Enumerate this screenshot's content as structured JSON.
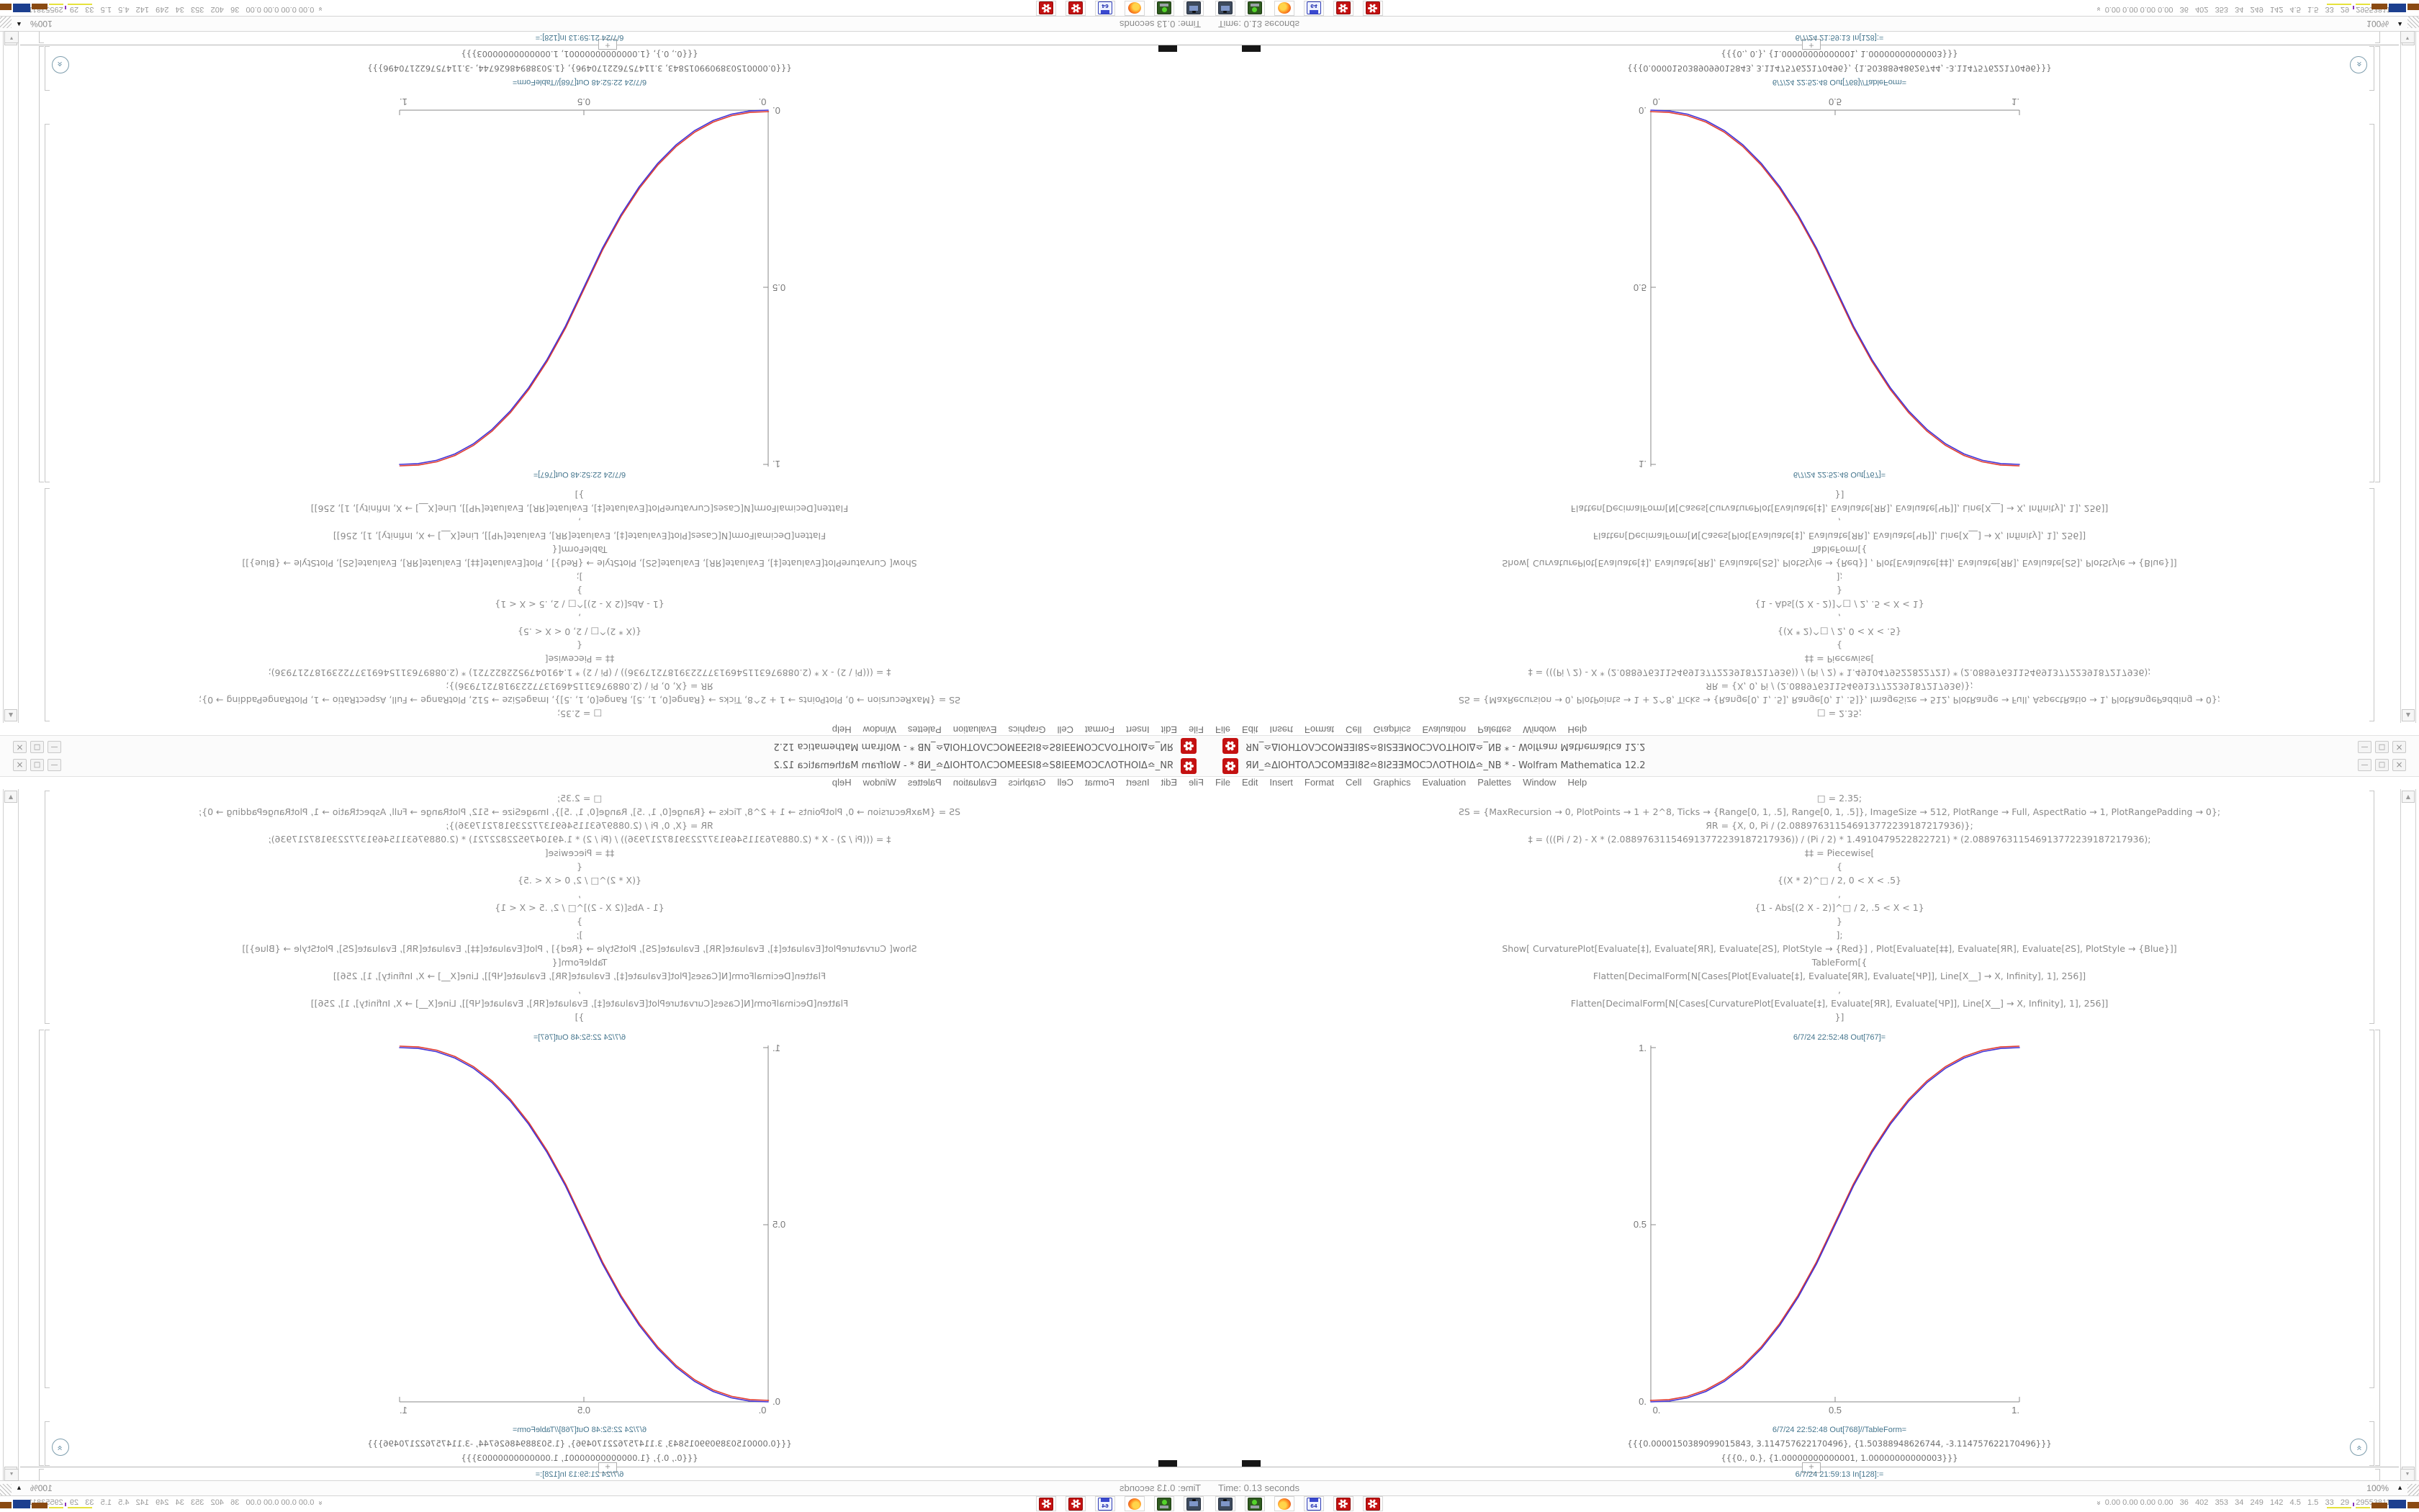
{
  "app": "Wolfram Mathematica 12.2",
  "window": {
    "title": "ЯИ_≏ΔΙΟΗΤΟΛƆCΟΜƎƎΙ8Ƨ≏8ΙƧƎƎΜΟCƆΛΟΤΗΟΙΔ≏_NB * - Wolfram Mathematica 12.2",
    "buttons": {
      "minimize": "—",
      "maximize": "□",
      "close": "×"
    },
    "menu": [
      "File",
      "Edit",
      "Insert",
      "Format",
      "Cell",
      "Graphics",
      "Evaluation",
      "Palettes",
      "Window",
      "Help"
    ],
    "code_lines": [
      "□ = 2.35;",
      "ƧS = {MaxRecursion → 0, PlotPoints → 1 + 2^8, Ticks → {Range[0, 1, .5], Range[0, 1, .5]}, ImageSize → 512, PlotRange → Full, AspectRatio → 1, PlotRangePadding → 0};",
      "ЯR = {X, 0, Pi / (2.088976311546913772239187217936)};",
      "‡ = (((Pi / 2) - X * (2.088976311546913772239187217936)) / (Pi / 2) * 1.4910479522822721) * (2.088976311546913772239187217936);",
      "‡‡ = Piecewise[",
      "{",
      "{(X * 2)^□ / 2, 0 < X < .5}",
      ",",
      "{1 - Abs[(2 X - 2)]^□ / 2, .5 < X < 1}",
      "}",
      "];",
      "Show[ CurvaturePlot[Evaluate[‡], Evaluate[ЯR], Evaluate[ƧS], PlotStyle → {Red}]  ,   Plot[Evaluate[‡‡], Evaluate[ЯR], Evaluate[ƧS], PlotStyle → {Blue}]]",
      "TableForm[{",
      "Flatten[DecimalForm[N[Cases[Plot[Evaluate[‡], Evaluate[ЯR], Evaluate[ЧP]], Line[X__] → X, Infinity], 1], 256]]",
      ",",
      "Flatten[DecimalForm[N[Cases[CurvaturePlot[Evaluate[‡], Evaluate[ЯR], Evaluate[ЧP]], Line[X__] → X, Infinity], 1], 256]]",
      "}]"
    ],
    "out_label_plot": "6/7/24 22:52:48 Out[767]=",
    "out_label_table": "6/7/24 22:52:48 Out[768]//TableForm=",
    "table_rows": [
      "{{{0.0000150389099015843, 3.114757622170496}, {1.50388948626744, -3.114757622170496}}}",
      "{{{0., 0.}, {1.00000000000001, 1.00000000000003}}}"
    ],
    "insert_plus": "+",
    "in_label": "6/7/24 21:59:13 In[128]:=",
    "status_time": "Time: 0.13 seconds",
    "zoom_level": "100%",
    "scroll_up_glyph": "▲",
    "scroll_down_glyph": "▼",
    "zoom_drop_glyph": "▼",
    "chevron_glyph": "«"
  },
  "taskbar": {
    "icons": [
      "screenshot-tool",
      "green-device-app",
      "firefox",
      "floppy-64-app",
      "mathematica",
      "mathematica"
    ],
    "floppy_label": "64",
    "stats_text": "0.00 0.00 0.00 0.00   36   402   353   34   249   142   4.5   1.5   33   29   29553811",
    "tray_arrow": "▲",
    "sparkline": [
      {
        "color": "#e6e23c",
        "w": 34,
        "h": 2,
        "dy": 0
      },
      {
        "color": "#8833bb",
        "w": 2,
        "h": 5,
        "dy": 3
      },
      {
        "color": "#e6e23c",
        "w": 20,
        "h": 2,
        "dy": 0
      },
      {
        "color": "#8a4a12",
        "w": 22,
        "h": 8,
        "dy": 0
      },
      {
        "color": "#1c3f8f",
        "w": 24,
        "h": 12,
        "dy": 0
      },
      {
        "color": "#8a4a12",
        "w": 22,
        "h": 9,
        "dy": 0
      },
      {
        "color": "#33bb33",
        "w": 20,
        "h": 2,
        "dy": 0
      },
      {
        "color": "#33bb33",
        "w": 12,
        "h": 5,
        "dy": 0
      }
    ]
  },
  "colors": {
    "curve_red": "#e03b30",
    "curve_blue": "#4233d6",
    "cell_label": "#44758d",
    "mathematica_red": "#c41111"
  },
  "chart_data": {
    "type": "line",
    "title": "",
    "xlabel": "",
    "ylabel": "",
    "xlim": [
      0,
      1
    ],
    "ylim": [
      0,
      1
    ],
    "xticks": [
      "0.",
      "0.5",
      "1."
    ],
    "yticks": [
      "0.",
      "0.5",
      "1."
    ],
    "grid": false,
    "legend": "none",
    "note": "Two nearly coincident smoothstep curves: piecewise (2x)^2.35/2 for 0<x<.5 and 1-|2x-2|^2.35/2 for .5<x<1; red (CurvaturePlot) overlays blue (Plot).",
    "x": [
      0,
      0.05,
      0.1,
      0.15,
      0.2,
      0.25,
      0.3,
      0.35,
      0.4,
      0.45,
      0.5,
      0.55,
      0.6,
      0.65,
      0.7,
      0.75,
      0.8,
      0.85,
      0.9,
      0.95,
      1
    ],
    "series": [
      {
        "name": "CurvaturePlot (Red)",
        "color": "#e03b30",
        "values": [
          0,
          0.0022,
          0.0114,
          0.0295,
          0.058,
          0.098,
          0.1505,
          0.2162,
          0.296,
          0.3903,
          0.5,
          0.6097,
          0.704,
          0.7838,
          0.8495,
          0.902,
          0.942,
          0.9705,
          0.9886,
          0.9978,
          1
        ]
      },
      {
        "name": "Plot (Blue)",
        "color": "#4233d6",
        "values": [
          0,
          0.0022,
          0.0114,
          0.0295,
          0.058,
          0.098,
          0.1505,
          0.2162,
          0.296,
          0.3903,
          0.5,
          0.6097,
          0.704,
          0.7838,
          0.8495,
          0.902,
          0.942,
          0.9705,
          0.9886,
          0.9978,
          1
        ]
      }
    ]
  }
}
